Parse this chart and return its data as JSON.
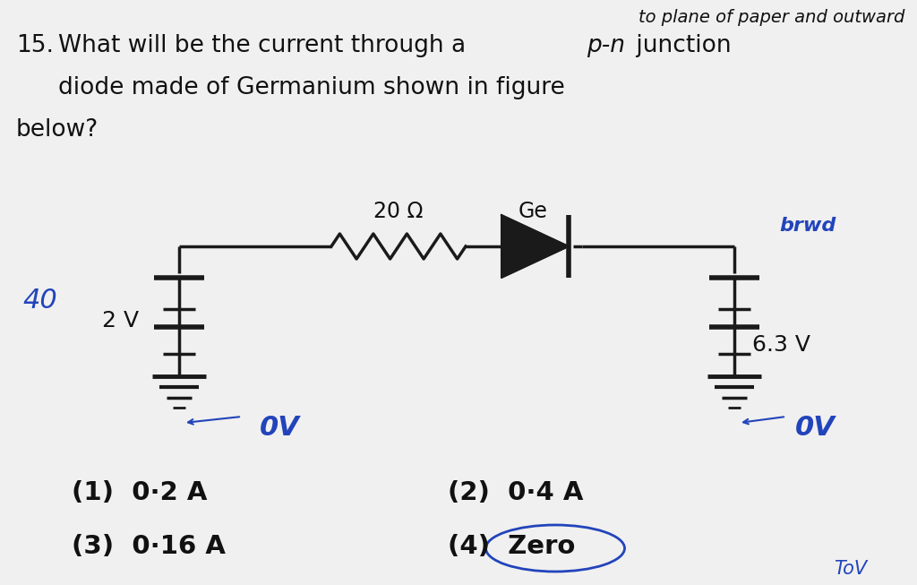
{
  "bg_color": "#f0f0f0",
  "title_top": "to plane of paper and outward",
  "question_number": "15.",
  "question_line1": "What will be the current through a ",
  "question_line1_italic": "p-n",
  "question_line1_end": " junction",
  "question_line2": "diode made of Germanium shown in figure",
  "question_line3": "below?",
  "resistor_label": "20 Ω",
  "diode_label": "Ge",
  "v_left_label": "2 V",
  "v_right_label": "6.3 V",
  "answer1": "(1)  0·2 A",
  "answer2": "(2)  0·4 A",
  "answer3": "(3)  0·16 A",
  "answer4": "(4)  Zero",
  "hw_left": "0V",
  "hw_right": "0V",
  "hw_topright": "brwd",
  "hw_margin": "40",
  "text_color": "#111111",
  "circuit_color": "#1a1a1a",
  "hw_color": "#2244bb",
  "circle_color": "#2244bb"
}
